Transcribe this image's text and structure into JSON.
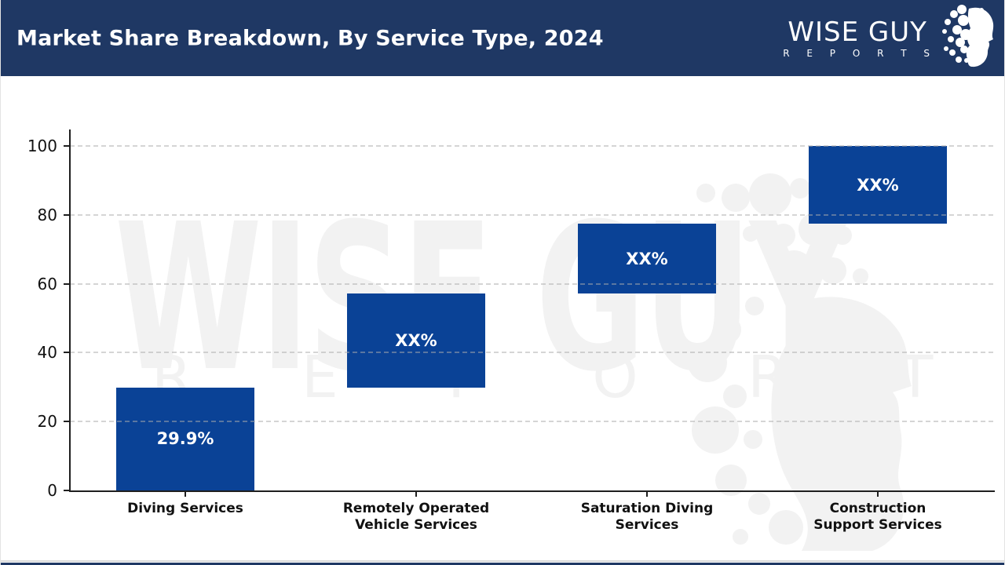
{
  "header": {
    "title": "Market Share Breakdown, By Service Type, 2024",
    "brand": {
      "line1": "WISE GUY",
      "line2": "R E P O R T S"
    }
  },
  "watermark": {
    "line1": "WISE GUY",
    "line2": "R E P O R T S"
  },
  "colors": {
    "header_bg": "#1F3864",
    "bar": "#0A4296",
    "axis": "#1f1f1f",
    "gridline": "rgba(172,172,172,0.5)",
    "watermark": "#F2F2F2",
    "bar_label_text": "#FFFFFF",
    "text": "#111111"
  },
  "chart_data": {
    "type": "bar",
    "subtype": "waterfall",
    "title": "Market Share Breakdown, By Service Type, 2024",
    "categories": [
      "Diving Services",
      "Remotely Operated\nVehicle Services",
      "Saturation Diving\nServices",
      "Construction\nSupport Services"
    ],
    "segments": [
      {
        "start": 0,
        "end": 29.9,
        "label": "29.9%"
      },
      {
        "start": 29.9,
        "end": 57.2,
        "label": "XX%"
      },
      {
        "start": 57.2,
        "end": 77.4,
        "label": "XX%"
      },
      {
        "start": 77.4,
        "end": 100,
        "label": "XX%"
      }
    ],
    "ylabel": "",
    "xlabel": "",
    "ylim": [
      0,
      100
    ],
    "yticks": [
      0,
      20,
      40,
      60,
      80,
      100
    ],
    "grid": "horizontal dashed",
    "legend": "none"
  }
}
